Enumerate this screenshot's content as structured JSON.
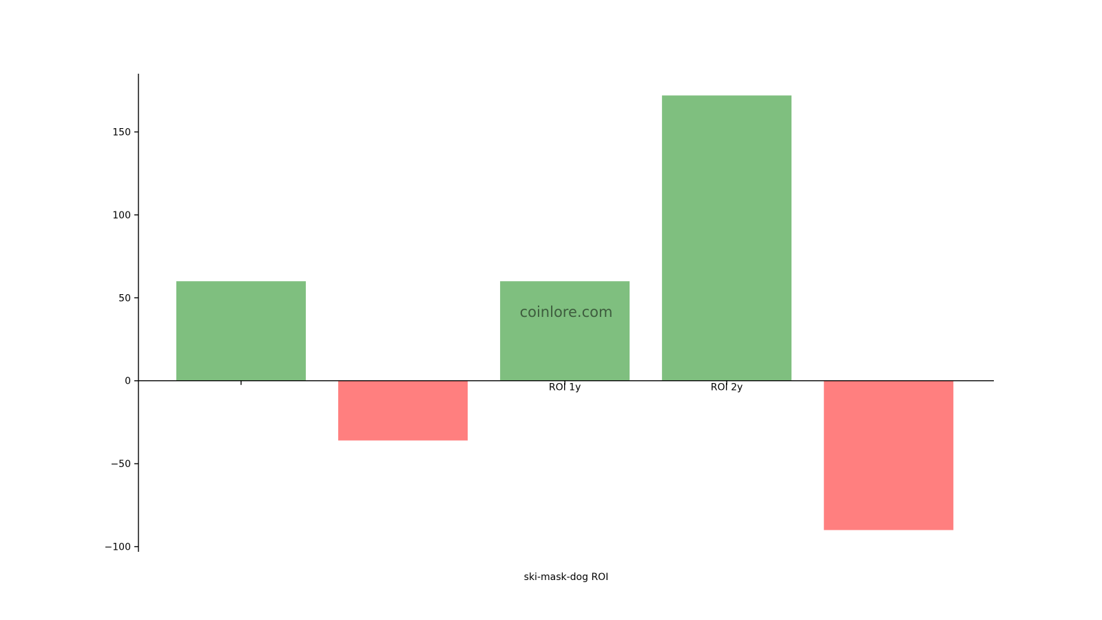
{
  "chart_data": {
    "type": "bar",
    "title": "",
    "xlabel": "ski-mask-dog ROI",
    "ylabel": "",
    "watermark": "coinlore.com",
    "categories": [
      "",
      "",
      "ROI 1y",
      "ROI 2y",
      ""
    ],
    "values": [
      60,
      -36,
      60,
      172,
      -90
    ],
    "bar_colors": [
      "#7fbf7f",
      "#ff7f7f",
      "#7fbf7f",
      "#7fbf7f",
      "#ff7f7f"
    ],
    "colors": {
      "positive": "#7fbf7f",
      "negative": "#ff7f7f",
      "axis": "#000000",
      "text": "#000000",
      "watermark": "rgba(0,0,0,0.52)",
      "background": "#ffffff"
    },
    "y_ticks": [
      150,
      100,
      50,
      0,
      -50,
      -100
    ],
    "y_tick_labels": [
      "150",
      "100",
      "50",
      "0",
      "−50",
      "−100"
    ],
    "ylim": [
      -103.1,
      185.1
    ],
    "xlim": [
      -0.634,
      4.65
    ],
    "bar_width_fraction": 0.8,
    "grid": false,
    "legend": false
  }
}
